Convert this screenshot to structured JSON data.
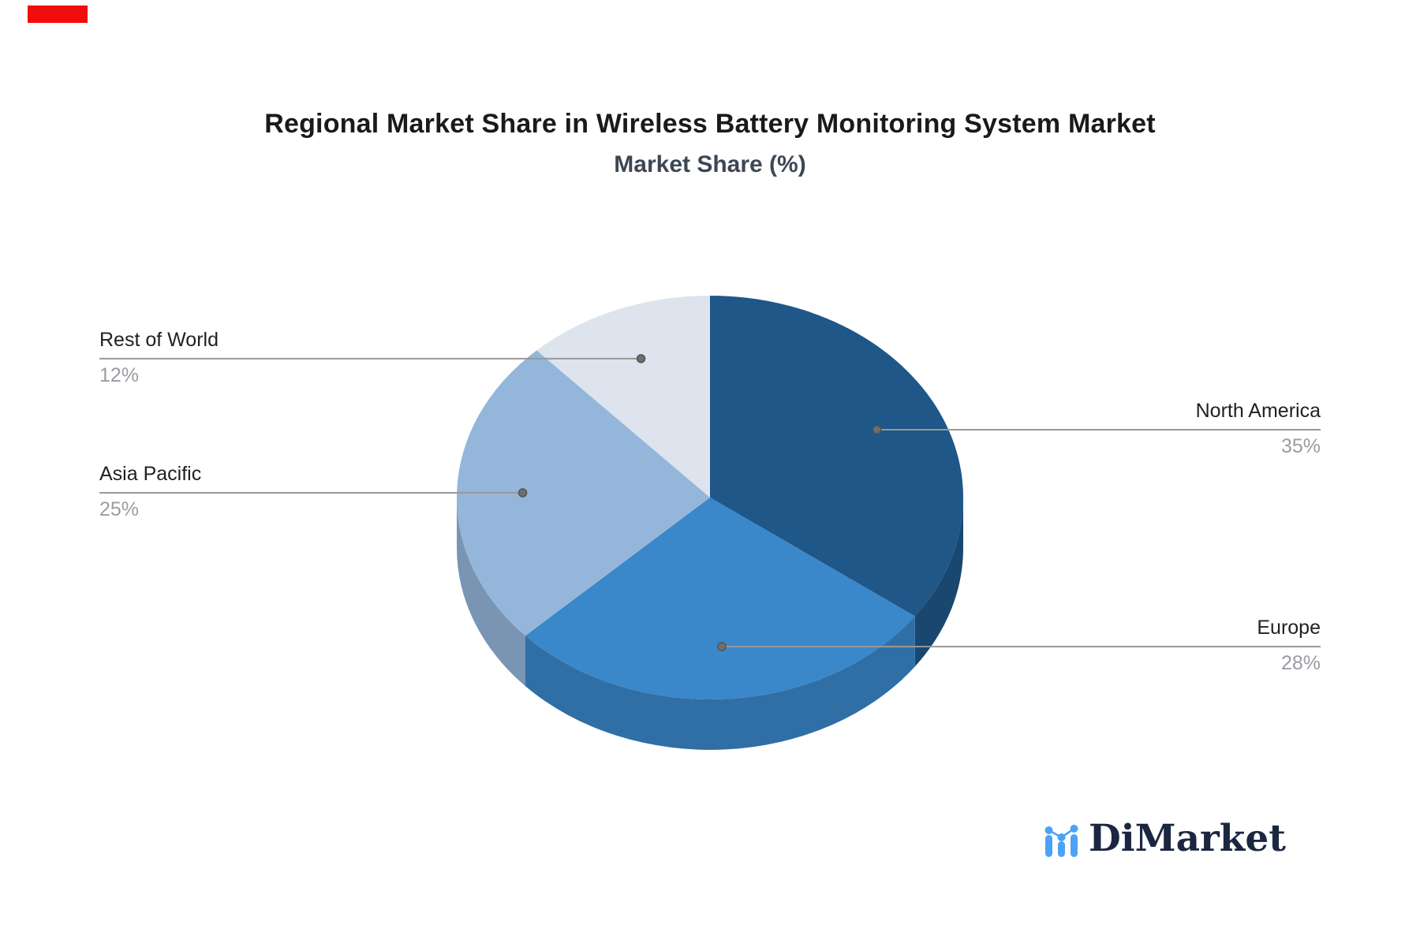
{
  "title": "Regional Market Share in Wireless Battery Monitoring System Market",
  "subtitle": "Market Share (%)",
  "red_marker_color": "#f20c0c",
  "brand": {
    "name": "DiMarket",
    "icon": "bar-line-chart-icon",
    "icon_color": "#4CA2F8",
    "text_color": "#1b2740"
  },
  "chart_data": {
    "type": "pie",
    "style": "3d",
    "title": "Regional Market Share in Wireless Battery Monitoring System Market",
    "subtitle": "Market Share (%)",
    "unit": "%",
    "start_angle_deg": 0,
    "direction": "clockwise",
    "legend_position": "none",
    "labels_layout": "callout-lines",
    "slices": [
      {
        "label": "North America",
        "value": 35,
        "display": "35%",
        "color": "#1e5788"
      },
      {
        "label": "Europe",
        "value": 28,
        "display": "28%",
        "color": "#3a87c9"
      },
      {
        "label": "Asia Pacific",
        "value": 25,
        "display": "25%",
        "color": "#94b6da"
      },
      {
        "label": "Rest of World",
        "value": 12,
        "display": "12%",
        "color": "#dde4ee"
      }
    ],
    "leader_line_color": "#999999",
    "leader_dot_color": "#6f6f6f",
    "label_text_color": "#212121",
    "value_text_color": "#999da2"
  }
}
